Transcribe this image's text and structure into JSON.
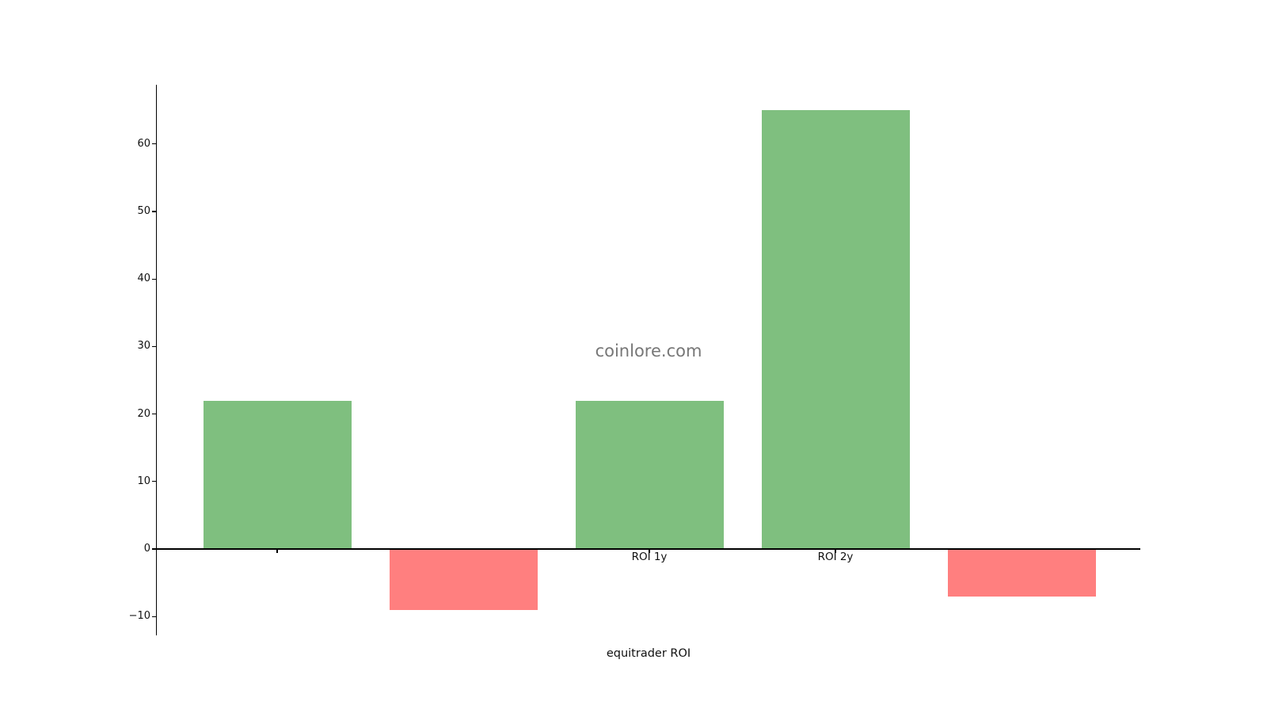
{
  "chart_data": {
    "type": "bar",
    "title": "equitrader ROI",
    "watermark": "coinlore.com",
    "categories": [
      "",
      "",
      "ROI 1y",
      "ROI 2y",
      ""
    ],
    "values": [
      22,
      -9,
      22,
      65,
      -7
    ],
    "series": [
      {
        "name": "equitrader ROI",
        "values": [
          22,
          -9,
          22,
          65,
          -7
        ]
      }
    ],
    "bar_colors": [
      "#7fbf7f",
      "#ff7f7f",
      "#7fbf7f",
      "#7fbf7f",
      "#ff7f7f"
    ],
    "positive_color": "#7fbf7f",
    "negative_color": "#ff7f7f",
    "y_ticks": [
      60,
      50,
      40,
      30,
      20,
      10,
      0,
      -10
    ],
    "ylim": [
      -12.8,
      68.8
    ],
    "xlabel": "",
    "ylabel": "",
    "grid": false,
    "legend_position": "none",
    "axis_color": "#000000",
    "text_color": "#111111",
    "watermark_color": "#777777",
    "background_color": "#ffffff"
  }
}
